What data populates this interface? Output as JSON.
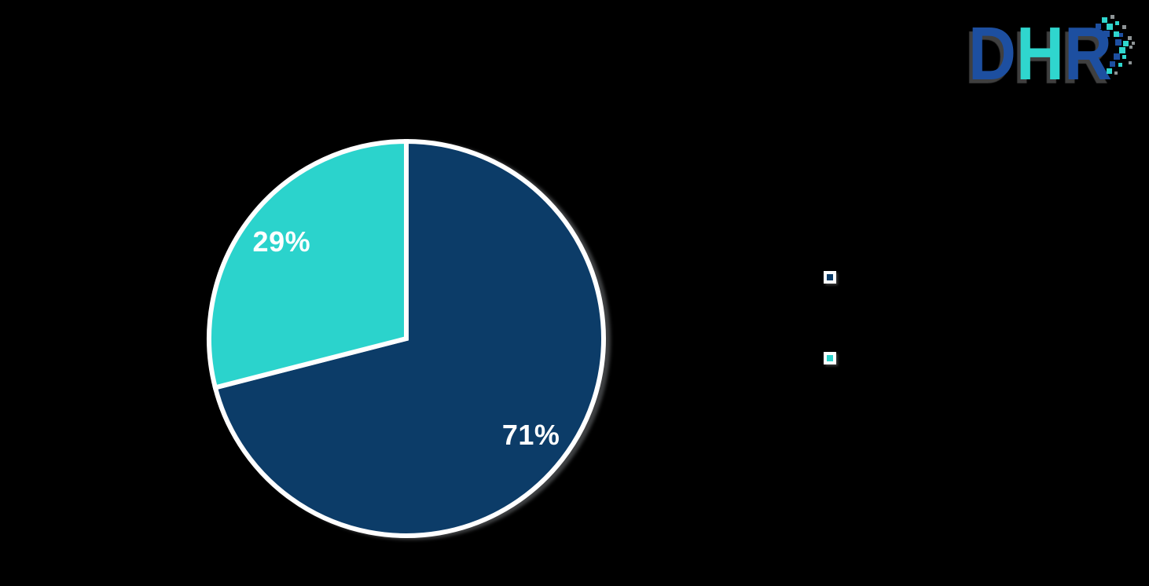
{
  "page": {
    "background_color": "#000000"
  },
  "logo": {
    "text": "DHR",
    "letters": [
      {
        "char": "D",
        "color": "#1d4fa0"
      },
      {
        "char": "H",
        "color": "#2fd6ce"
      },
      {
        "char": "R",
        "color": "#1d4fa0"
      }
    ],
    "sparkle_colors": [
      "#2fd6ce",
      "#1d4fa0",
      "#8e9496"
    ]
  },
  "chart_data": {
    "type": "pie",
    "start_angle_deg": 0,
    "direction": "clockwise",
    "slice_border_color": "#ffffff",
    "data_label_color": "#ffffff",
    "slices": [
      {
        "value": 71,
        "label": "71%",
        "color": "#0c3c68"
      },
      {
        "value": 29,
        "label": "29%",
        "color": "#2bd3cc"
      }
    ],
    "legend": {
      "position": "right",
      "swatch_border_color": "#ffffff",
      "items": [
        {
          "swatch_color": "#0c3c68"
        },
        {
          "swatch_color": "#2bd3cc"
        }
      ],
      "labels_visible": false
    }
  }
}
